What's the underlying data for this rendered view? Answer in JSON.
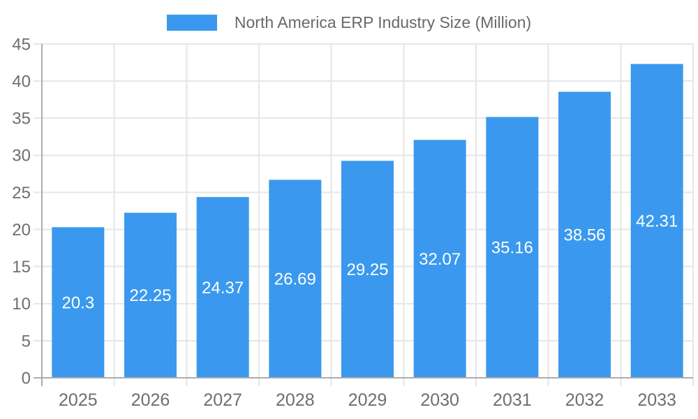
{
  "page": {
    "background": "#ffffff"
  },
  "legend": {
    "swatch_color": "#3a99ee",
    "label": "North America ERP Industry Size (Million)"
  },
  "chart_data": {
    "type": "bar",
    "title": "North America ERP Industry Size (Million)",
    "categories": [
      "2025",
      "2026",
      "2027",
      "2028",
      "2029",
      "2030",
      "2031",
      "2032",
      "2033"
    ],
    "series": [
      {
        "name": "North America ERP Industry Size (Million)",
        "values": [
          20.3,
          22.25,
          24.37,
          26.69,
          29.25,
          32.07,
          35.16,
          38.56,
          42.31
        ]
      }
    ],
    "bar_value_labels": [
      "20.3",
      "22.25",
      "24.37",
      "26.69",
      "29.25",
      "32.07",
      "35.16",
      "38.56",
      "42.31"
    ],
    "xlabel": "",
    "ylabel": "",
    "ylim": [
      0,
      45
    ],
    "ytick_step": 5,
    "yticks": [
      0,
      5,
      10,
      15,
      20,
      25,
      30,
      35,
      40,
      45
    ],
    "grid": true,
    "legend_position": "top",
    "colors": {
      "bar": "#3a99ee",
      "bar_label": "#ffffff",
      "axis_text": "#6e6e6e",
      "grid_line": "#e6e6e6",
      "axis_line": "#adadad"
    }
  }
}
